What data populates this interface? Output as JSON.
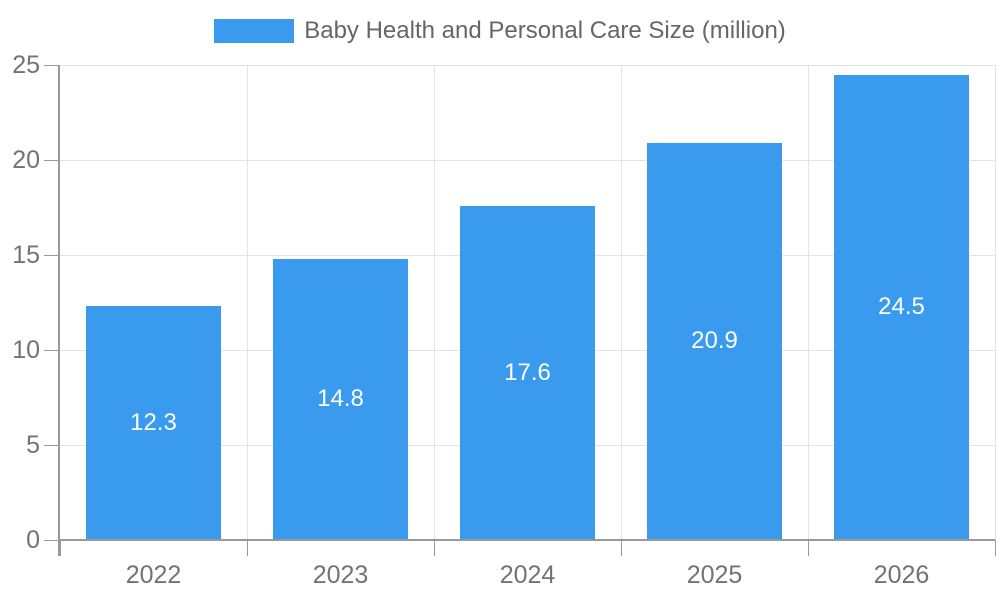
{
  "chart_data": {
    "type": "bar",
    "title": "Baby Health and Personal Care Size (million)",
    "categories": [
      "2022",
      "2023",
      "2024",
      "2025",
      "2026"
    ],
    "series": [
      {
        "name": "Baby Health and Personal Care Size (million)",
        "values": [
          12.3,
          14.8,
          17.6,
          20.9,
          24.5
        ],
        "data_labels": [
          "12.3",
          "14.8",
          "17.6",
          "20.9",
          "24.5"
        ]
      }
    ],
    "xlabel": "",
    "ylabel": "",
    "ylim": [
      0,
      25
    ],
    "yticks": [
      0,
      5,
      10,
      15,
      20,
      25
    ],
    "ytick_labels": [
      "0",
      "5",
      "10",
      "15",
      "20",
      "25"
    ],
    "grid": true,
    "legend_position": "top",
    "bar_labels_inside": true
  },
  "legend": {
    "label": "Baby Health and Personal Care Size (million)",
    "swatch_icon": "legend-color-swatch"
  },
  "colors": {
    "bar": "#399AEE",
    "axis": "#999999",
    "grid": "#E4E4E4",
    "tick_label": "#737373",
    "legend_text": "#666666",
    "bar_label": "#FFFFFF",
    "background": "#FFFFFF"
  }
}
